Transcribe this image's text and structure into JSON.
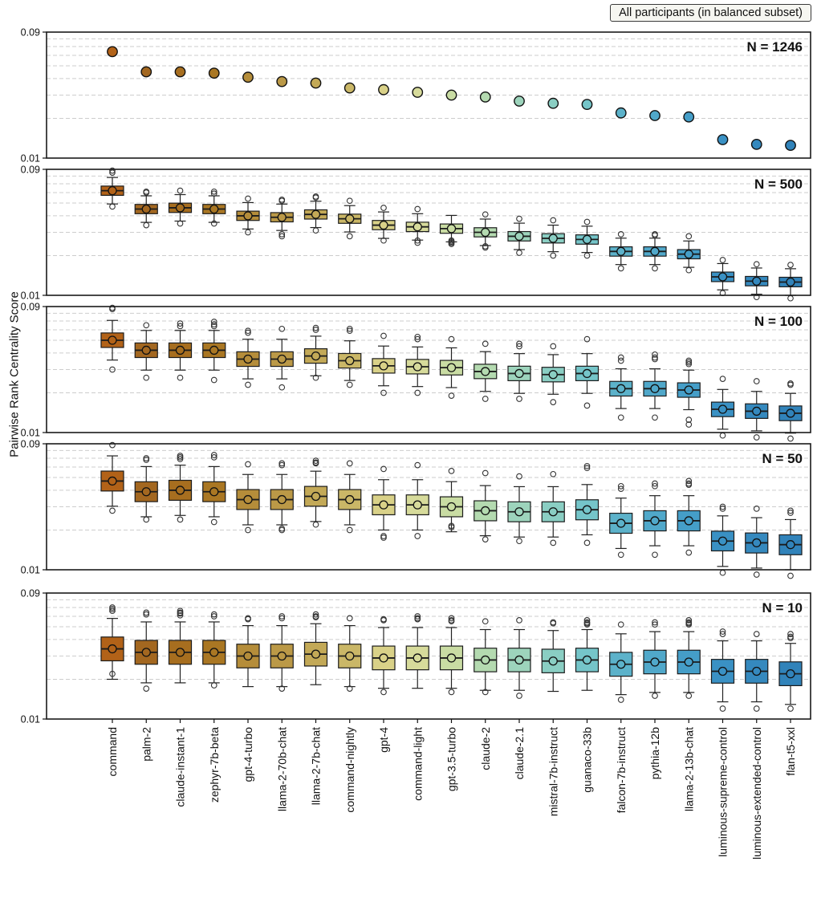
{
  "chart_data": {
    "type": "boxplot",
    "panel_layout": "5 vertically stacked panels sharing one categorical x axis",
    "ylabel": "Pairwise Rank Centrality Score",
    "legend": "All participants (in balanced subset)",
    "legend_position": "top-right",
    "y_scale": "log",
    "ylim": [
      0.01,
      0.09
    ],
    "y_tick_labels": [
      "0.09",
      "0.01"
    ],
    "gridlines": [
      0.02,
      0.03,
      0.04,
      0.05,
      0.06,
      0.07,
      0.08
    ],
    "grid": "dashed horizontal",
    "x_categories": [
      "command",
      "palm-2",
      "claude-instant-1",
      "zephyr-7b-beta",
      "gpt-4-turbo",
      "llama-2-70b-chat",
      "llama-2-7b-chat",
      "command-nightly",
      "gpt-4",
      "command-light",
      "gpt-3.5-turbo",
      "claude-2",
      "claude-2.1",
      "mistral-7b-instruct",
      "guanaco-33b",
      "falcon-7b-instruct",
      "pythia-12b",
      "llama-2-13b-chat",
      "luminous-supreme-control",
      "luminous-extended-control",
      "flan-t5-xxl"
    ],
    "colors": [
      "#b26218",
      "#a36720",
      "#a76e1f",
      "#aa7723",
      "#b58d3a",
      "#bb9947",
      "#c3a957",
      "#cab767",
      "#d9d188",
      "#d7db9b",
      "#c9dca3",
      "#b4dab0",
      "#9dd4bc",
      "#8acec3",
      "#75c5c9",
      "#5cb2ca",
      "#50a8ca",
      "#459ec8",
      "#3a91c4",
      "#3589be",
      "#3183ba"
    ],
    "panels": [
      {
        "label": "N = 1246",
        "type": "points",
        "values": [
          0.064,
          0.045,
          0.045,
          0.044,
          0.041,
          0.038,
          0.037,
          0.034,
          0.033,
          0.0315,
          0.03,
          0.029,
          0.027,
          0.026,
          0.0255,
          0.022,
          0.021,
          0.0205,
          0.0138,
          0.0127,
          0.0125
        ]
      },
      {
        "label": "N = 500",
        "type": "box",
        "boxes": [
          [
            0.0492,
            0.0572,
            0.062,
            0.0672,
            0.0781
          ],
          [
            0.0357,
            0.0415,
            0.045,
            0.0488,
            0.0567
          ],
          [
            0.0365,
            0.0424,
            0.046,
            0.0499,
            0.0579
          ],
          [
            0.0357,
            0.0415,
            0.045,
            0.0488,
            0.0567
          ],
          [
            0.0318,
            0.0369,
            0.04,
            0.0434,
            0.0504
          ],
          [
            0.031,
            0.036,
            0.039,
            0.0423,
            0.0491
          ],
          [
            0.0326,
            0.0378,
            0.041,
            0.0444,
            0.0516
          ],
          [
            0.0302,
            0.0351,
            0.038,
            0.0412,
            0.0478
          ],
          [
            0.027,
            0.0314,
            0.034,
            0.0369,
            0.0428
          ],
          [
            0.0262,
            0.0304,
            0.033,
            0.0358,
            0.0415
          ],
          [
            0.0254,
            0.0295,
            0.032,
            0.0347,
            0.0403
          ],
          [
            0.0238,
            0.0277,
            0.03,
            0.0325,
            0.0378
          ],
          [
            0.0222,
            0.0258,
            0.028,
            0.0304,
            0.0352
          ],
          [
            0.0214,
            0.0249,
            0.027,
            0.0293,
            0.034
          ],
          [
            0.0211,
            0.0244,
            0.0265,
            0.0287,
            0.0334
          ],
          [
            0.0171,
            0.0198,
            0.0215,
            0.0233,
            0.0271
          ],
          [
            0.0171,
            0.0198,
            0.0215,
            0.0233,
            0.0271
          ],
          [
            0.0163,
            0.0189,
            0.0205,
            0.0222,
            0.0258
          ],
          [
            0.011,
            0.0127,
            0.0138,
            0.015,
            0.0174
          ],
          [
            0.0102,
            0.0118,
            0.0128,
            0.0139,
            0.0161
          ],
          [
            0.01,
            0.0116,
            0.0126,
            0.0137,
            0.0159
          ]
        ],
        "outliers": [
          [
            0.085,
            0.088,
            0.047
          ],
          [
            0.061,
            0.06,
            0.034
          ],
          [
            0.062,
            0.035
          ],
          [
            0.061,
            0.059,
            0.035
          ],
          [
            0.054,
            0.03
          ],
          [
            0.053,
            0.052,
            0.029,
            0.028
          ],
          [
            0.056,
            0.055,
            0.031
          ],
          [
            0.052,
            0.028
          ],
          [
            0.046,
            0.026
          ],
          [
            0.045,
            0.026,
            0.025
          ],
          [
            0.026,
            0.0255,
            0.025,
            0.0245
          ],
          [
            0.041,
            0.0235,
            0.023
          ],
          [
            0.038,
            0.021
          ],
          [
            0.037,
            0.02
          ],
          [
            0.036,
            0.02
          ],
          [
            0.029,
            0.016
          ],
          [
            0.029,
            0.0285,
            0.016
          ],
          [
            0.028,
            0.0155
          ],
          [
            0.0185,
            0.0104
          ],
          [
            0.0172,
            0.0097
          ],
          [
            0.017,
            0.0095
          ]
        ]
      },
      {
        "label": "N = 100",
        "type": "box",
        "boxes": [
          [
            0.0354,
            0.0441,
            0.05,
            0.0568,
            0.0707
          ],
          [
            0.0297,
            0.037,
            0.042,
            0.0477,
            0.0593
          ],
          [
            0.0297,
            0.037,
            0.042,
            0.0477,
            0.0593
          ],
          [
            0.0297,
            0.037,
            0.042,
            0.0477,
            0.0593
          ],
          [
            0.0255,
            0.0317,
            0.036,
            0.0409,
            0.0509
          ],
          [
            0.0255,
            0.0317,
            0.036,
            0.0409,
            0.0509
          ],
          [
            0.0269,
            0.0335,
            0.038,
            0.0431,
            0.0537
          ],
          [
            0.0248,
            0.0308,
            0.035,
            0.0397,
            0.0495
          ],
          [
            0.0226,
            0.0282,
            0.032,
            0.0363,
            0.0452
          ],
          [
            0.0223,
            0.0278,
            0.0315,
            0.0358,
            0.0445
          ],
          [
            0.0219,
            0.0273,
            0.031,
            0.0352,
            0.0438
          ],
          [
            0.0205,
            0.0256,
            0.029,
            0.0329,
            0.041
          ],
          [
            0.0198,
            0.0247,
            0.028,
            0.0318,
            0.0396
          ],
          [
            0.0195,
            0.0242,
            0.0275,
            0.0312,
            0.0389
          ],
          [
            0.0198,
            0.0247,
            0.028,
            0.0318,
            0.0396
          ],
          [
            0.0152,
            0.0189,
            0.0215,
            0.0244,
            0.0304
          ],
          [
            0.0152,
            0.0189,
            0.0215,
            0.0244,
            0.0304
          ],
          [
            0.0149,
            0.0185,
            0.021,
            0.0238,
            0.0297
          ],
          [
            0.0106,
            0.0132,
            0.015,
            0.017,
            0.0212
          ],
          [
            0.0103,
            0.0128,
            0.0145,
            0.0165,
            0.0205
          ],
          [
            0.0099,
            0.0123,
            0.014,
            0.0159,
            0.0198
          ]
        ],
        "outliers": [
          [
            0.088,
            0.086,
            0.03
          ],
          [
            0.065,
            0.026
          ],
          [
            0.067,
            0.064,
            0.026
          ],
          [
            0.069,
            0.066,
            0.064,
            0.025
          ],
          [
            0.059,
            0.057,
            0.023
          ],
          [
            0.061,
            0.022
          ],
          [
            0.062,
            0.06,
            0.026
          ],
          [
            0.061,
            0.059,
            0.023
          ],
          [
            0.054,
            0.02
          ],
          [
            0.053,
            0.051,
            0.02
          ],
          [
            0.051,
            0.019
          ],
          [
            0.047,
            0.018
          ],
          [
            0.047,
            0.045,
            0.018
          ],
          [
            0.045,
            0.017
          ],
          [
            0.051,
            0.016
          ],
          [
            0.037,
            0.035,
            0.013
          ],
          [
            0.039,
            0.037,
            0.036,
            0.013
          ],
          [
            0.035,
            0.034,
            0.033,
            0.0125,
            0.0115
          ],
          [
            0.0255,
            0.0095
          ],
          [
            0.0245,
            0.0092
          ],
          [
            0.0235,
            0.023,
            0.009
          ]
        ]
      },
      {
        "label": "N = 50",
        "type": "box",
        "boxes": [
          [
            0.0303,
            0.0395,
            0.047,
            0.0559,
            0.0729
          ],
          [
            0.0252,
            0.0328,
            0.039,
            0.0464,
            0.0605
          ],
          [
            0.0258,
            0.0336,
            0.04,
            0.0476,
            0.062
          ],
          [
            0.0252,
            0.0328,
            0.039,
            0.0464,
            0.0605
          ],
          [
            0.0219,
            0.0286,
            0.034,
            0.0405,
            0.0527
          ],
          [
            0.0219,
            0.0286,
            0.034,
            0.0405,
            0.0527
          ],
          [
            0.0232,
            0.0303,
            0.036,
            0.0428,
            0.0558
          ],
          [
            0.0219,
            0.0286,
            0.034,
            0.0405,
            0.0527
          ],
          [
            0.02,
            0.0261,
            0.031,
            0.0369,
            0.0481
          ],
          [
            0.02,
            0.0261,
            0.031,
            0.0369,
            0.0481
          ],
          [
            0.0194,
            0.0252,
            0.03,
            0.0357,
            0.0465
          ],
          [
            0.0181,
            0.0235,
            0.028,
            0.0333,
            0.0434
          ],
          [
            0.0177,
            0.0231,
            0.0275,
            0.0327,
            0.0426
          ],
          [
            0.0177,
            0.0231,
            0.0275,
            0.0327,
            0.0426
          ],
          [
            0.0184,
            0.0239,
            0.0285,
            0.0339,
            0.0442
          ],
          [
            0.0145,
            0.0189,
            0.0225,
            0.0268,
            0.0349
          ],
          [
            0.0152,
            0.0197,
            0.0235,
            0.028,
            0.0364
          ],
          [
            0.0152,
            0.0197,
            0.0235,
            0.028,
            0.0364
          ],
          [
            0.0106,
            0.0139,
            0.0165,
            0.0196,
            0.0256
          ],
          [
            0.0103,
            0.0134,
            0.016,
            0.019,
            0.0248
          ],
          [
            0.01,
            0.013,
            0.0155,
            0.0184,
            0.024
          ]
        ],
        "outliers": [
          [
            0.088,
            0.028
          ],
          [
            0.07,
            0.068,
            0.024
          ],
          [
            0.073,
            0.071,
            0.069,
            0.024
          ],
          [
            0.074,
            0.071,
            0.023
          ],
          [
            0.063,
            0.02
          ],
          [
            0.064,
            0.062,
            0.0205,
            0.02
          ],
          [
            0.067,
            0.065,
            0.064,
            0.022
          ],
          [
            0.064,
            0.02
          ],
          [
            0.058,
            0.018,
            0.0175
          ],
          [
            0.062,
            0.018
          ],
          [
            0.056,
            0.0215,
            0.021
          ],
          [
            0.054,
            0.017
          ],
          [
            0.051,
            0.0165
          ],
          [
            0.053,
            0.016
          ],
          [
            0.061,
            0.059,
            0.016
          ],
          [
            0.043,
            0.041,
            0.013
          ],
          [
            0.045,
            0.043,
            0.013
          ],
          [
            0.047,
            0.045,
            0.044,
            0.0135
          ],
          [
            0.03,
            0.029,
            0.0095
          ],
          [
            0.029,
            0.0092
          ],
          [
            0.028,
            0.027,
            0.009
          ]
        ]
      },
      {
        "label": "N = 10",
        "type": "box",
        "boxes": [
          [
            0.02,
            0.0276,
            0.034,
            0.0418,
            0.0578
          ],
          [
            0.0188,
            0.026,
            0.032,
            0.0394,
            0.0544
          ],
          [
            0.0188,
            0.026,
            0.032,
            0.0394,
            0.0544
          ],
          [
            0.0188,
            0.026,
            0.032,
            0.0394,
            0.0544
          ],
          [
            0.0176,
            0.0244,
            0.03,
            0.0369,
            0.051
          ],
          [
            0.0176,
            0.0244,
            0.03,
            0.0369,
            0.051
          ],
          [
            0.0182,
            0.0252,
            0.031,
            0.0381,
            0.0527
          ],
          [
            0.0176,
            0.0244,
            0.03,
            0.0369,
            0.051
          ],
          [
            0.0171,
            0.0236,
            0.029,
            0.0357,
            0.0493
          ],
          [
            0.0171,
            0.0236,
            0.029,
            0.0357,
            0.0493
          ],
          [
            0.0171,
            0.0236,
            0.029,
            0.0357,
            0.0493
          ],
          [
            0.0165,
            0.0228,
            0.028,
            0.0344,
            0.0476
          ],
          [
            0.0165,
            0.0228,
            0.028,
            0.0344,
            0.0476
          ],
          [
            0.0162,
            0.0224,
            0.0275,
            0.0338,
            0.0468
          ],
          [
            0.0165,
            0.0228,
            0.028,
            0.0344,
            0.0476
          ],
          [
            0.0153,
            0.0211,
            0.026,
            0.032,
            0.0442
          ],
          [
            0.0159,
            0.022,
            0.027,
            0.0332,
            0.0459
          ],
          [
            0.0159,
            0.022,
            0.027,
            0.0332,
            0.0459
          ],
          [
            0.0135,
            0.0187,
            0.023,
            0.0283,
            0.0391
          ],
          [
            0.0135,
            0.0187,
            0.023,
            0.0283,
            0.0391
          ],
          [
            0.0129,
            0.0179,
            0.022,
            0.0271,
            0.0374
          ]
        ],
        "outliers": [
          [
            0.07,
            0.068,
            0.066,
            0.022
          ],
          [
            0.064,
            0.062,
            0.017
          ],
          [
            0.066,
            0.064,
            0.063,
            0.061
          ],
          [
            0.062,
            0.06,
            0.018
          ],
          [
            0.058,
            0.057
          ],
          [
            0.06,
            0.058,
            0.017
          ],
          [
            0.062,
            0.06,
            0.059
          ],
          [
            0.058,
            0.017
          ],
          [
            0.057,
            0.056,
            0.016
          ],
          [
            0.06,
            0.058,
            0.057
          ],
          [
            0.058,
            0.056,
            0.055,
            0.016
          ],
          [
            0.055,
            0.016
          ],
          [
            0.056,
            0.015
          ],
          [
            0.054,
            0.053
          ],
          [
            0.056,
            0.054,
            0.053,
            0.052
          ],
          [
            0.052,
            0.014
          ],
          [
            0.054,
            0.052,
            0.015
          ],
          [
            0.056,
            0.054,
            0.053,
            0.052,
            0.015
          ],
          [
            0.046,
            0.044,
            0.012
          ],
          [
            0.044,
            0.012
          ],
          [
            0.044,
            0.042,
            0.041,
            0.012
          ]
        ]
      }
    ]
  }
}
